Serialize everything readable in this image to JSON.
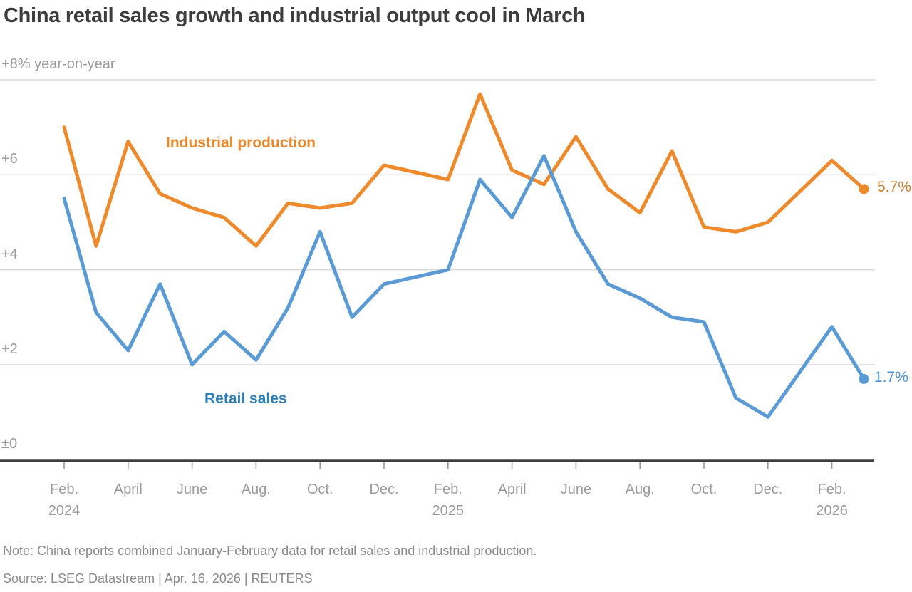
{
  "header": {
    "title": "China retail sales growth and industrial output cool in March"
  },
  "chart_data": {
    "type": "line",
    "title": "China retail sales growth and industrial output cool in March",
    "unit": "% year-on-year",
    "ylim": [
      0,
      8
    ],
    "grid": "horizontal",
    "legend_position": "inline-labels",
    "y_axis_labels": [
      {
        "value": 8,
        "text": "+8% year-on-year"
      },
      {
        "value": 6,
        "text": "+6"
      },
      {
        "value": 4,
        "text": "+4"
      },
      {
        "value": 2,
        "text": "+2"
      },
      {
        "value": 0,
        "text": "±0"
      }
    ],
    "x_ticks": [
      {
        "m": 0,
        "line1": "Feb.",
        "line2": "2024"
      },
      {
        "m": 2,
        "line1": "April"
      },
      {
        "m": 4,
        "line1": "June"
      },
      {
        "m": 6,
        "line1": "Aug."
      },
      {
        "m": 8,
        "line1": "Oct."
      },
      {
        "m": 10,
        "line1": "Dec."
      },
      {
        "m": 12,
        "line1": "Feb.",
        "line2": "2025"
      },
      {
        "m": 14,
        "line1": "April"
      },
      {
        "m": 16,
        "line1": "June"
      },
      {
        "m": 18,
        "line1": "Aug."
      },
      {
        "m": 20,
        "line1": "Oct."
      },
      {
        "m": 22,
        "line1": "Dec."
      },
      {
        "m": 24,
        "line1": "Feb.",
        "line2": "2026"
      }
    ],
    "month_offsets": [
      0,
      1,
      2,
      3,
      4,
      5,
      6,
      7,
      8,
      9,
      10,
      12,
      13,
      14,
      15,
      16,
      17,
      18,
      19,
      20,
      21,
      22,
      24,
      25
    ],
    "x_categories": [
      "Feb. 2024",
      "Mar. 2024",
      "Apr. 2024",
      "May 2024",
      "Jun. 2024",
      "Jul. 2024",
      "Aug. 2024",
      "Sep. 2024",
      "Oct. 2024",
      "Nov. 2024",
      "Dec. 2024",
      "Feb. 2025",
      "Mar. 2025",
      "Apr. 2025",
      "May 2025",
      "Jun. 2025",
      "Jul. 2025",
      "Aug. 2025",
      "Sep. 2025",
      "Oct. 2025",
      "Nov. 2025",
      "Dec. 2025",
      "Feb. 2026",
      "Mar. 2026"
    ],
    "series": [
      {
        "name": "Industrial production",
        "color": "#EE8A2C",
        "label_color": "#E8882B",
        "end_label": "5.7%",
        "end_label_color": "#C97E33",
        "values": [
          7.0,
          4.5,
          6.7,
          5.6,
          5.3,
          5.1,
          4.5,
          5.4,
          5.3,
          5.4,
          6.2,
          5.9,
          7.7,
          6.1,
          5.8,
          6.8,
          5.7,
          5.2,
          6.5,
          4.9,
          4.8,
          5.0,
          6.3,
          5.7
        ]
      },
      {
        "name": "Retail sales",
        "color": "#5B9BD5",
        "label_color": "#2E7EB8",
        "end_label": "1.7%",
        "end_label_color": "#4D93CC",
        "values": [
          5.5,
          3.1,
          2.3,
          3.7,
          2.0,
          2.7,
          2.1,
          3.2,
          4.8,
          3.0,
          3.7,
          4.0,
          5.9,
          5.1,
          6.4,
          4.8,
          3.7,
          3.4,
          3.0,
          2.9,
          1.3,
          0.9,
          2.8,
          1.7
        ]
      }
    ]
  },
  "footer": {
    "note": "Note: China reports combined January-February data for retail sales and industrial production.",
    "source": "Source: LSEG Datastream | Apr. 16, 2026 | REUTERS"
  }
}
